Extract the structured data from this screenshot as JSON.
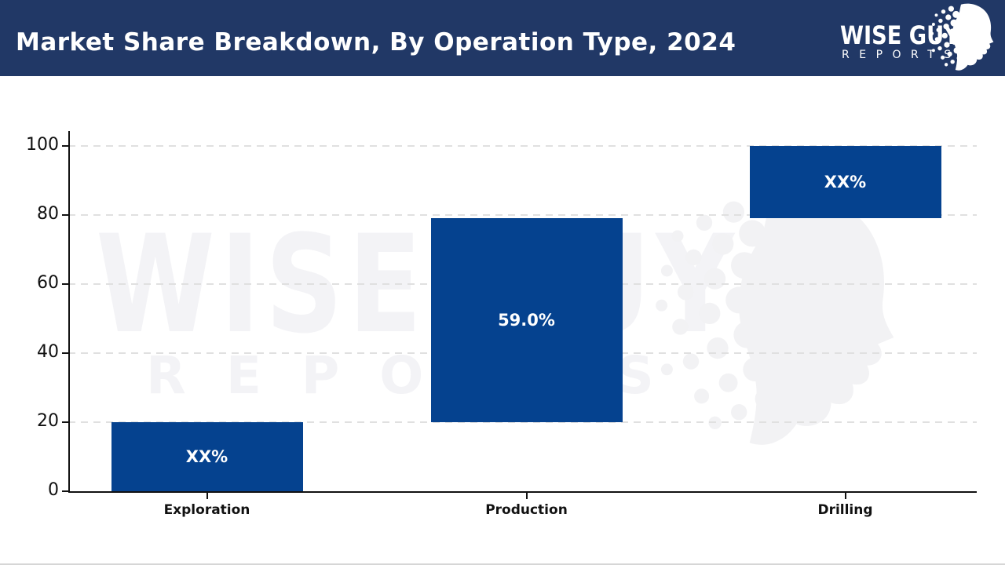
{
  "header": {
    "title": "Market Share Breakdown, By Operation Type, 2024",
    "logo": {
      "line1": "WISE GUY",
      "line2": "REPORTS"
    }
  },
  "watermark": {
    "line1": "WISE GUY",
    "line2": "REPORTS"
  },
  "chart_data": {
    "type": "bar",
    "subtype": "waterfall",
    "title": "Market Share Breakdown, By Operation Type, 2024",
    "categories": [
      "Exploration",
      "Production",
      "Drilling"
    ],
    "segments": [
      {
        "category": "Exploration",
        "start": 0,
        "end": 20,
        "label": "XX%"
      },
      {
        "category": "Production",
        "start": 20,
        "end": 79,
        "label": "59.0%"
      },
      {
        "category": "Drilling",
        "start": 79,
        "end": 100,
        "label": "XX%"
      }
    ],
    "xlabel": "",
    "ylabel": "",
    "ylim": [
      0,
      100
    ],
    "yticks": [
      0,
      20,
      40,
      60,
      80,
      100
    ],
    "grid": "horizontal-dashed",
    "legend": "none"
  },
  "colors": {
    "header_bg": "#213866",
    "bar": "#05428f",
    "bar_label": "#ffffff",
    "grid": "#e0e0e0",
    "axis": "#111111",
    "watermark": "#f3f3f6"
  }
}
